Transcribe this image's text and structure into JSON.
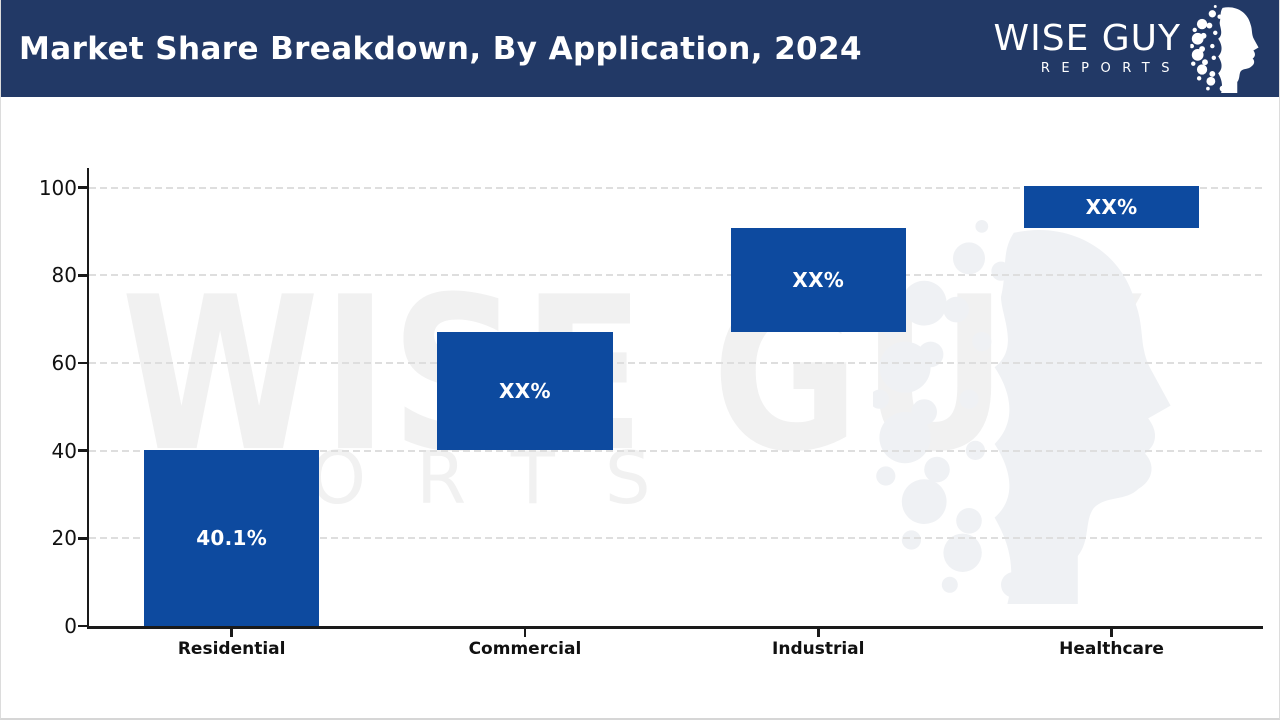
{
  "header": {
    "title": "Market Share Breakdown, By Application, 2024",
    "logo": {
      "line1": "WISE GUY",
      "line2": "REPORTS"
    },
    "bg_color": "#223966"
  },
  "watermark": {
    "line1": "WISE GUY",
    "line2": "PORTS"
  },
  "colors": {
    "header_bg": "#223966",
    "bar_blue": "#0d4a9f",
    "bar_label": "#ffffff",
    "watermark_gray": "#f1f1f1",
    "gridline_gray": "#dedede",
    "axis_black": "#1a1a1a"
  },
  "chart_data": {
    "type": "bar",
    "subtype": "waterfall-segments",
    "title": "Market Share Breakdown, By Application, 2024",
    "categories": [
      "Residential",
      "Commercial",
      "Industrial",
      "Healthcare"
    ],
    "segments": [
      {
        "category": "Residential",
        "start": 0,
        "end": 40.1,
        "label": "40.1%"
      },
      {
        "category": "Commercial",
        "start": 40.1,
        "end": 67.0,
        "label": "XX%"
      },
      {
        "category": "Industrial",
        "start": 67.0,
        "end": 90.9,
        "label": "XX%"
      },
      {
        "category": "Healthcare",
        "start": 90.9,
        "end": 100.4,
        "label": "XX%"
      }
    ],
    "xlabel": "",
    "ylabel": "",
    "yticks": [
      0,
      20,
      40,
      60,
      80,
      100
    ],
    "ylim": [
      0,
      104.5
    ],
    "grid": "horizontal-dashed",
    "legend": "none",
    "bar_color": "#0d4a9f",
    "label_color": "#ffffff"
  }
}
